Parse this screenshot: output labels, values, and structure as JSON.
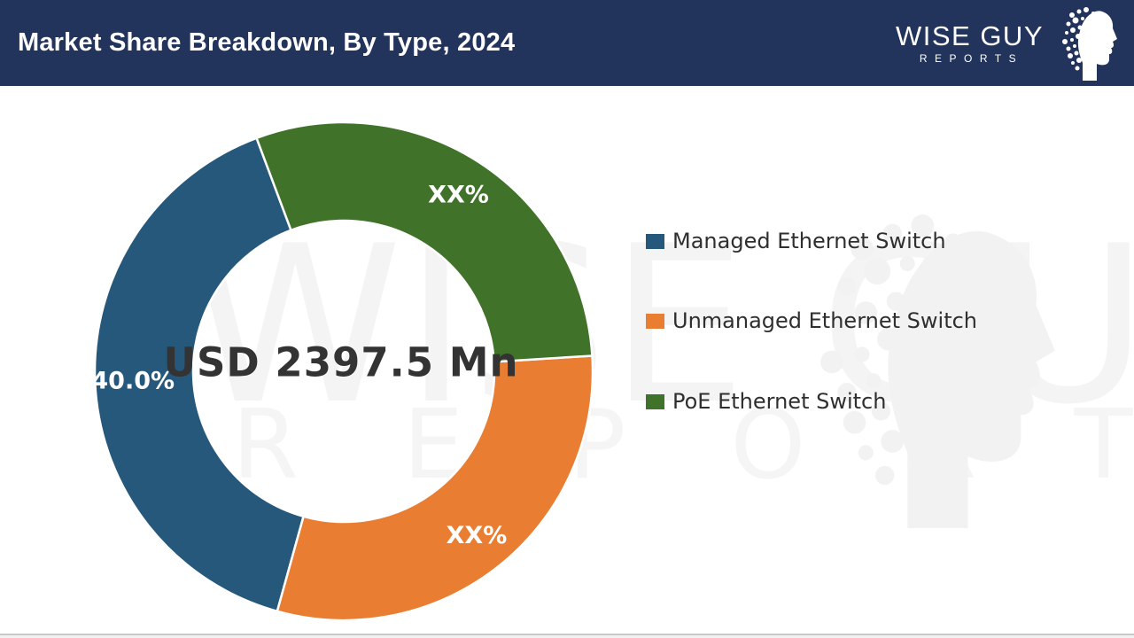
{
  "header": {
    "title": "Market Share Breakdown, By Type, 2024",
    "background_color": "#23345C",
    "logo": {
      "line1": "WISE GUY",
      "line2": "REPORTS"
    }
  },
  "watermark": {
    "line1": "WISE GUY",
    "line2": "REPORTS"
  },
  "chart_data": {
    "type": "pie",
    "subtype": "donut",
    "title": "Market Share Breakdown, By Type, 2024",
    "center_label": "USD 2397.5 Mn",
    "start_angle_deg": 110.5,
    "direction": "counterclockwise",
    "inner_radius_ratio": 0.605,
    "slice_label_color": "#ffffff",
    "segments": [
      {
        "name": "Managed Ethernet Switch",
        "label": "40.0%",
        "pct": 40.0,
        "color": "#26587C"
      },
      {
        "name": "Unmanaged Ethernet Switch",
        "label": "XX%",
        "pct": 30.3,
        "color": "#E97D32"
      },
      {
        "name": "PoE Ethernet Switch",
        "label": "XX%",
        "pct": 29.7,
        "color": "#41722A"
      }
    ]
  },
  "legend": {
    "items": [
      {
        "label": "Managed Ethernet Switch",
        "color": "#26587C"
      },
      {
        "label": "Unmanaged Ethernet Switch",
        "color": "#E97D32"
      },
      {
        "label": "PoE Ethernet Switch",
        "color": "#41722A"
      }
    ]
  }
}
